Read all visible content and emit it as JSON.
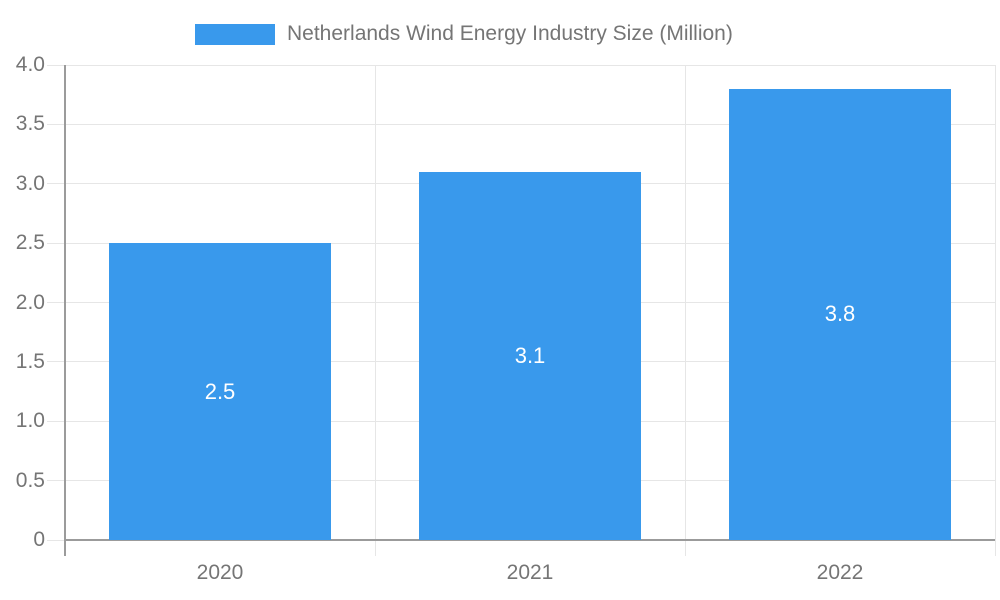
{
  "chart_data": {
    "type": "bar",
    "title": "Netherlands Wind Energy Industry Size (Million)",
    "legend": {
      "position": "top",
      "entries": [
        "Netherlands Wind Energy Industry Size (Million)"
      ]
    },
    "categories": [
      "2020",
      "2021",
      "2022"
    ],
    "values": [
      2.5,
      3.1,
      3.8
    ],
    "value_labels": [
      "2.5",
      "3.1",
      "3.8"
    ],
    "xlabel": "",
    "ylabel": "",
    "ylim": [
      0,
      4
    ],
    "yticks": [
      0,
      0.5,
      1,
      1.5,
      2,
      2.5,
      3,
      3.5,
      4
    ],
    "ytick_labels": [
      "0",
      "0.5",
      "1.0",
      "1.5",
      "2.0",
      "2.5",
      "3.0",
      "3.5",
      "4.0"
    ],
    "grid": true,
    "colors": {
      "bar": "#3999EC",
      "grid": "#E6E6E6",
      "axis": "#9B9B9B",
      "tick_text": "#757575",
      "value_label": "#FFFFFF",
      "background": "#FFFFFF"
    }
  }
}
